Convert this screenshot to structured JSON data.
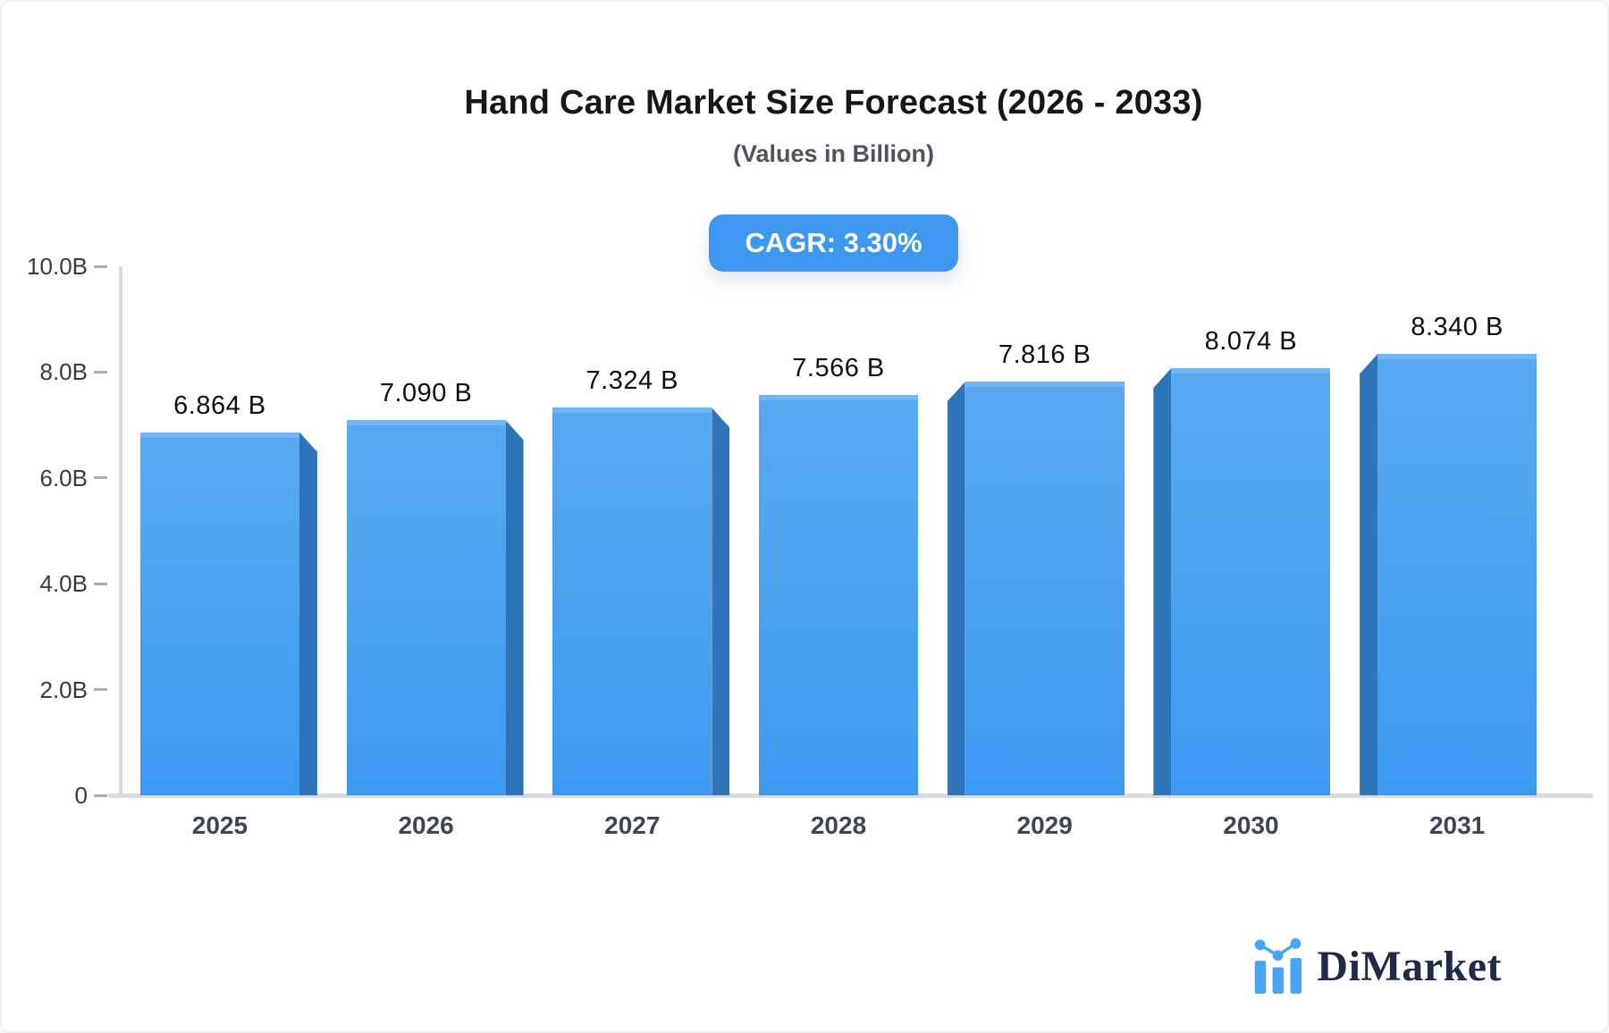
{
  "header": {
    "title": "Hand Care Market Size Forecast (2026 - 2033)",
    "subtitle": "(Values in Billion)"
  },
  "badge": {
    "label": "CAGR: 3.30%",
    "bg": "#3e97f0",
    "text_color": "#ffffff"
  },
  "chart_data": {
    "type": "bar",
    "title": "Hand Care Market Size Forecast (2026 - 2033)",
    "subtitle": "(Values in Billion)",
    "categories": [
      "2025",
      "2026",
      "2027",
      "2028",
      "2029",
      "2030",
      "2031"
    ],
    "values": [
      6.864,
      7.09,
      7.324,
      7.566,
      7.816,
      8.074,
      8.34
    ],
    "value_labels": [
      "6.864 B",
      "7.090 B",
      "7.324 B",
      "7.566 B",
      "7.816 B",
      "8.074 B",
      "8.340 B"
    ],
    "xlabel": "",
    "ylabel": "",
    "ylim": [
      0,
      10
    ],
    "yticks": [
      {
        "value": 0,
        "label": "0"
      },
      {
        "value": 2,
        "label": "2.0B"
      },
      {
        "value": 4,
        "label": "4.0B"
      },
      {
        "value": 6,
        "label": "6.0B"
      },
      {
        "value": 8,
        "label": "8.0B"
      },
      {
        "value": 10,
        "label": "10.0B"
      }
    ],
    "grid": false,
    "legend": false,
    "style": "3d-bars, perspective toward center (left bars show right face, right bars show left face, center bar flat)",
    "colors": {
      "bar_fill_top": "#58a9f0",
      "bar_fill_bottom": "#3e99f1",
      "bar_top_highlight": "#71b5f4",
      "bar_side_face": "#2e74b8",
      "axis_line": "#d9dcdf",
      "tick_dash": "#a9afb6",
      "value_label_color": "#0e0e0e",
      "category_label_color": "#3b4656"
    }
  },
  "logo": {
    "text": "DiMarket",
    "icon": "bar-chart-logo-icon",
    "icon_color": "#4aa3f5",
    "text_color": "#1d2b49"
  }
}
